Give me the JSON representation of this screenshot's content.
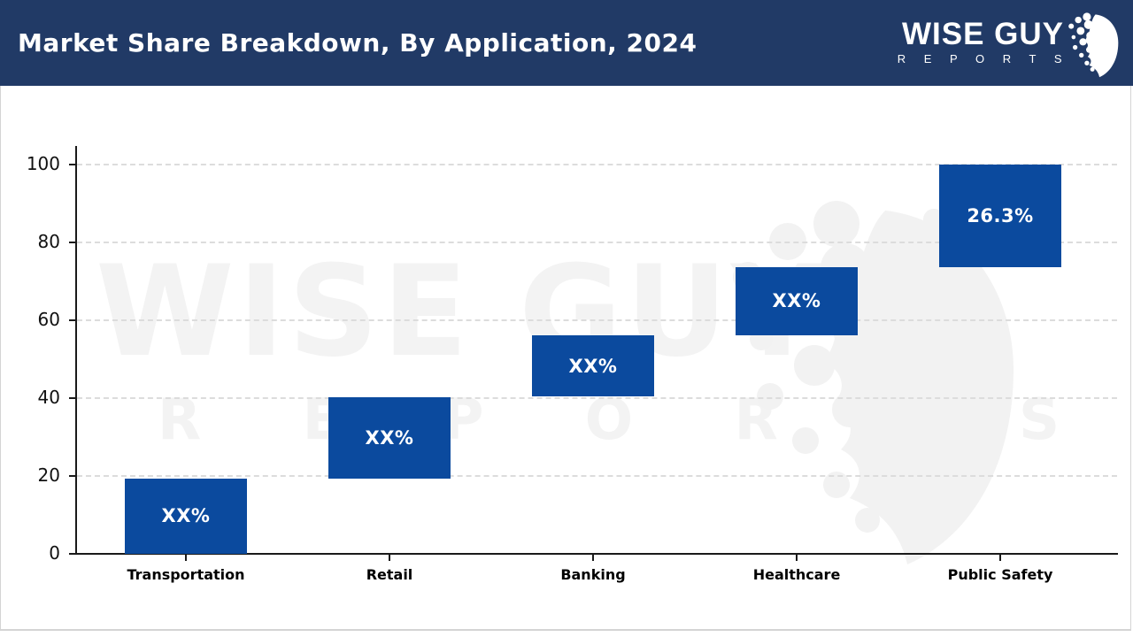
{
  "header": {
    "title": "Market Share Breakdown, By Application, 2024",
    "logo": {
      "line1": "WISE GUY",
      "line2": "R E P O R T S"
    }
  },
  "watermark": {
    "line1": "WISE GUY",
    "line2": "R E P O R T S"
  },
  "chart_data": {
    "type": "bar",
    "subtype": "waterfall-floating-bars",
    "title": "Market Share Breakdown, By Application, 2024",
    "categories": [
      "Transportation",
      "Retail",
      "Banking",
      "Healthcare",
      "Public Safety"
    ],
    "bars": [
      {
        "category": "Transportation",
        "start": 0,
        "end": 19.4,
        "label": "XX%"
      },
      {
        "category": "Retail",
        "start": 19.4,
        "end": 40.2,
        "label": "XX%"
      },
      {
        "category": "Banking",
        "start": 40.4,
        "end": 56.1,
        "label": "XX%"
      },
      {
        "category": "Healthcare",
        "start": 56.2,
        "end": 73.7,
        "label": "XX%"
      },
      {
        "category": "Public Safety",
        "start": 73.7,
        "end": 100,
        "label": "26.3%"
      }
    ],
    "y_ticks": [
      0,
      20,
      40,
      60,
      80,
      100
    ],
    "ylim": [
      0,
      105
    ],
    "xlabel": "",
    "ylabel": "",
    "grid": "horizontal-dashed",
    "legend": "none",
    "bar_color": "#0b4a9e",
    "label_color": "#ffffff"
  },
  "colors": {
    "header_bg": "#213a66",
    "bar": "#0b4a9e",
    "gridline": "#dcdcdc",
    "axis": "#1a1a1a",
    "watermark": "#f3f3f3",
    "frame_border": "#d4d4d4"
  }
}
